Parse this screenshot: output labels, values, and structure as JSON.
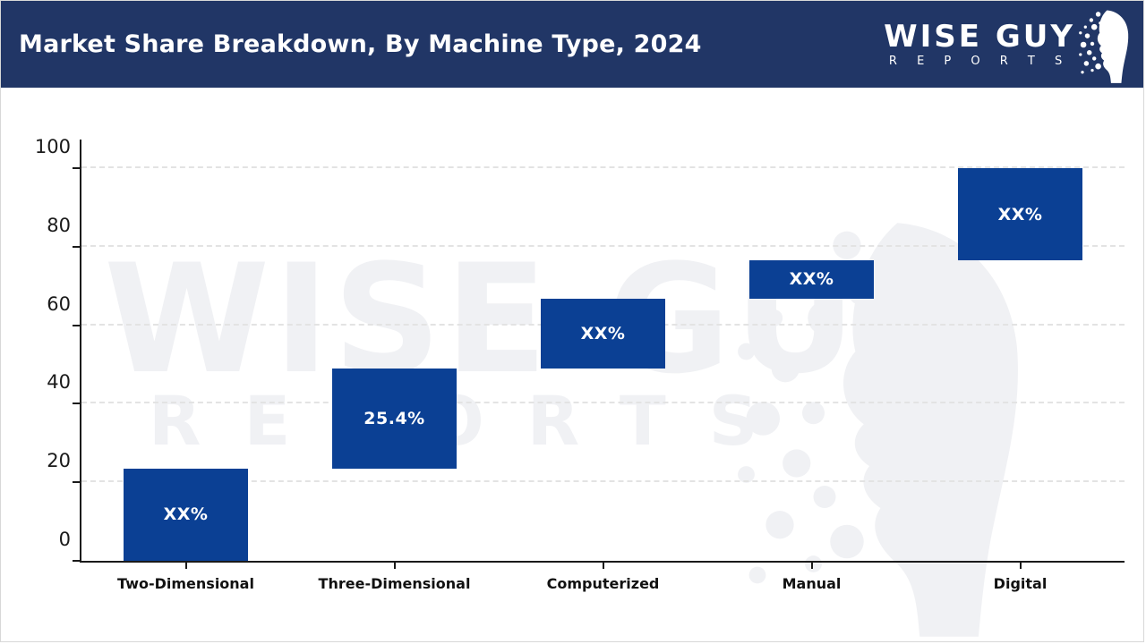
{
  "header": {
    "title": "Market Share Breakdown, By Machine Type, 2024",
    "logo": {
      "line1": "WISE GUY",
      "line2": "R E P O R T S"
    }
  },
  "watermark": {
    "line1": "WISE GUY",
    "line2": "REPORTS"
  },
  "colors": {
    "header_bg": "#213666",
    "bar": "#0b4094",
    "bar_label": "#ffffff",
    "grid": "#e3e3e3",
    "axis": "#1a1a1a",
    "page_border": "#d8d8d8",
    "watermark": "#f0f1f4"
  },
  "chart_data": {
    "type": "bar",
    "subtype": "waterfall",
    "title": "Market Share Breakdown, By Machine Type, 2024",
    "xlabel": "",
    "ylabel": "",
    "ylim": [
      0,
      105.5
    ],
    "yticks": [
      0,
      20,
      40,
      60,
      80,
      100
    ],
    "grid": "horizontal-dashed",
    "legend": "none",
    "categories": [
      "Two-Dimensional",
      "Three-Dimensional",
      "Computerized",
      "Manual",
      "Digital"
    ],
    "bars": [
      {
        "category": "Two-Dimensional",
        "base": 0,
        "top": 23.5,
        "label": "XX%"
      },
      {
        "category": "Three-Dimensional",
        "base": 23.5,
        "top": 48.9,
        "label": "25.4%"
      },
      {
        "category": "Computerized",
        "base": 49.1,
        "top": 66.7,
        "label": "XX%"
      },
      {
        "category": "Manual",
        "base": 66.8,
        "top": 76.6,
        "label": "XX%"
      },
      {
        "category": "Digital",
        "base": 76.6,
        "top": 100,
        "label": "XX%"
      }
    ],
    "bar_width_fraction": 0.6
  }
}
